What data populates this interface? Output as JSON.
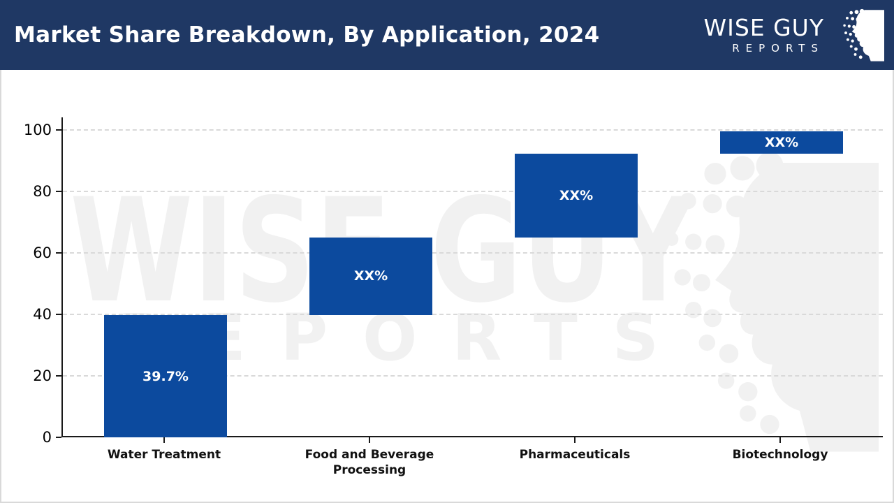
{
  "header": {
    "title": "Market Share Breakdown, By Application, 2024",
    "logo": {
      "name": "WISE GUY",
      "subname": "REPORTS"
    }
  },
  "watermark": {
    "line1": "WISE GUY",
    "line2": "REPORTS"
  },
  "chart_data": {
    "type": "bar",
    "subtype": "waterfall",
    "title": "Market Share Breakdown, By Application, 2024",
    "categories": [
      "Water Treatment",
      "Food and Beverage Processing",
      "Pharmaceuticals",
      "Biotechnology"
    ],
    "yticks": [
      0,
      20,
      40,
      60,
      80,
      100
    ],
    "ylim": [
      0,
      104
    ],
    "grid": "horizontal-dashed",
    "legend": "none",
    "bar_color": "#0c4a9e",
    "bar_label_color": "#ffffff",
    "series": [
      {
        "name": "Market share (%)",
        "segments": [
          {
            "category": "Water Treatment",
            "start": 0,
            "end": 39.7,
            "label": "39.7%"
          },
          {
            "category": "Food and Beverage Processing",
            "start": 39.7,
            "end": 65.0,
            "label": "XX%"
          },
          {
            "category": "Pharmaceuticals",
            "start": 65.0,
            "end": 92.3,
            "label": "XX%"
          },
          {
            "category": "Biotechnology",
            "start": 92.3,
            "end": 99.5,
            "label": "XX%"
          }
        ]
      }
    ]
  },
  "colors": {
    "header_bg": "#1f3864",
    "bar": "#0c4a9e",
    "grid": "#d9d9d9",
    "axis": "#1a1a1a",
    "watermark": "#f1f1f1",
    "page_border": "#d9d9d9"
  }
}
